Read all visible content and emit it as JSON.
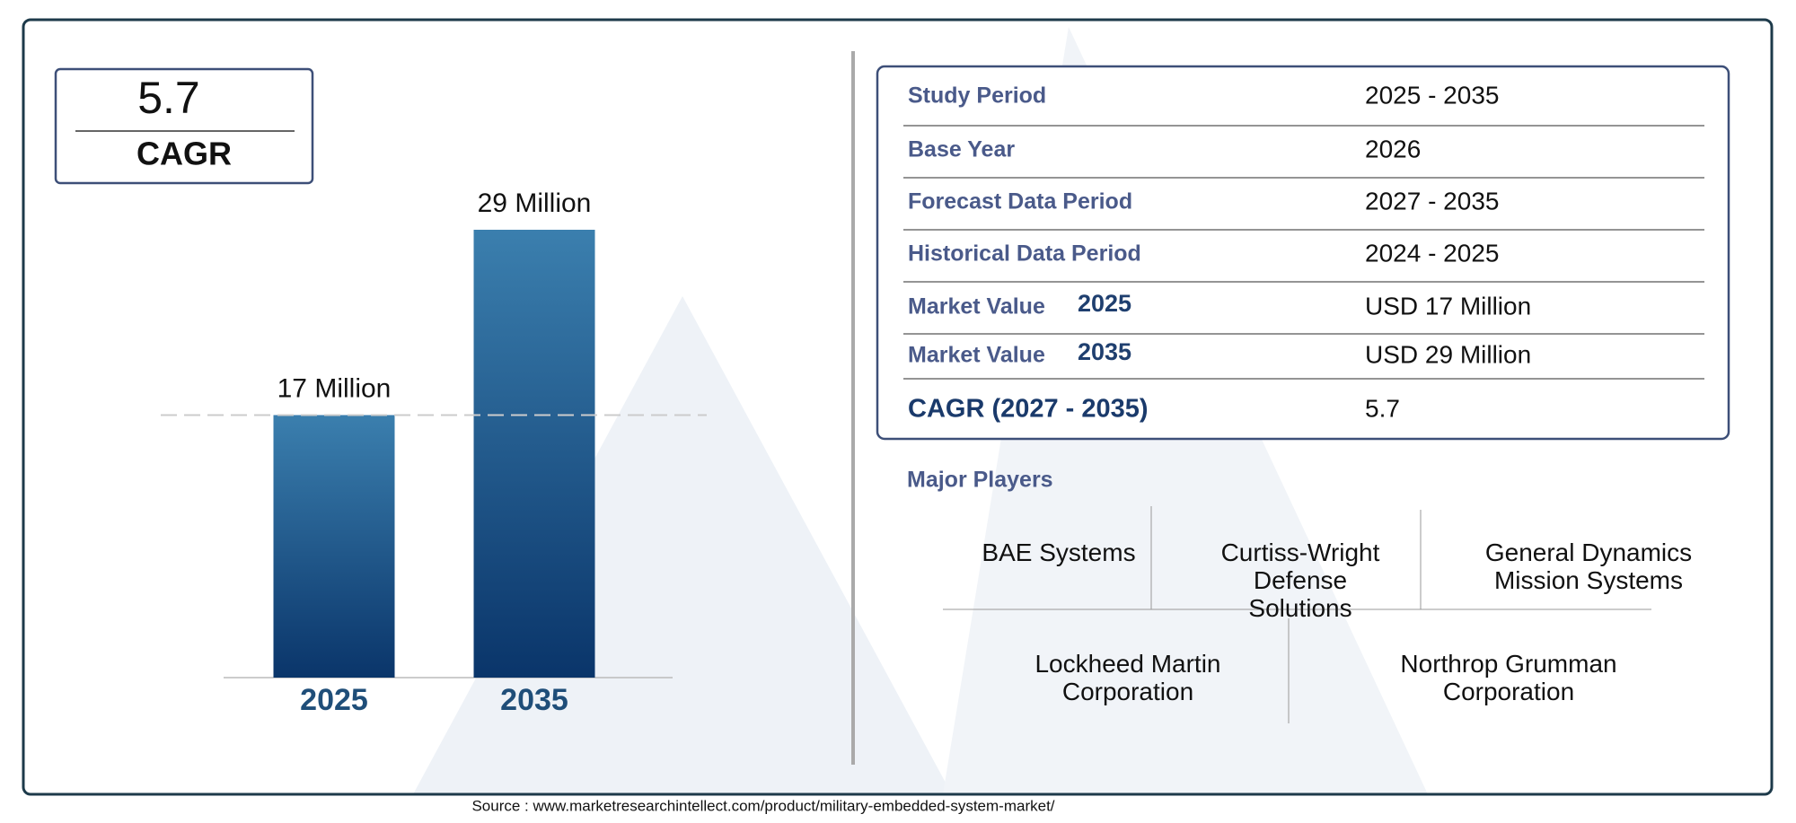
{
  "chart_data": {
    "type": "bar",
    "categories": [
      "2025",
      "2035"
    ],
    "values": [
      17,
      29
    ],
    "value_labels": [
      "17 Million",
      "29 Million"
    ],
    "gradient": [
      "#3b7fae",
      "#0a356a"
    ],
    "reference_line": true
  },
  "cagr_box": {
    "value": "5.7",
    "label": "CAGR"
  },
  "table": {
    "rows": [
      {
        "label": "Study Period",
        "value": "2025 - 2035"
      },
      {
        "label": "Base Year",
        "value": "2026"
      },
      {
        "label": "Forecast Data Period",
        "value": "2027 - 2035"
      },
      {
        "label": "Historical Data Period",
        "value": "2024 - 2025"
      },
      {
        "label": "Market Value",
        "year": "2025",
        "value": "USD 17 Million"
      },
      {
        "label": "Market Value",
        "year": "2035",
        "value": "USD 29 Million"
      },
      {
        "label": "CAGR (2027 - 2035)",
        "value": "5.7"
      }
    ]
  },
  "players": {
    "title": "Major Players",
    "names": [
      "BAE Systems",
      "Curtiss-Wright Defense Solutions",
      "General Dynamics Mission Systems",
      "Lockheed Martin Corporation",
      "Northrop Grumman Corporation"
    ]
  },
  "source": "Source : www.marketresearchintellect.com/product/military-embedded-system-market/"
}
